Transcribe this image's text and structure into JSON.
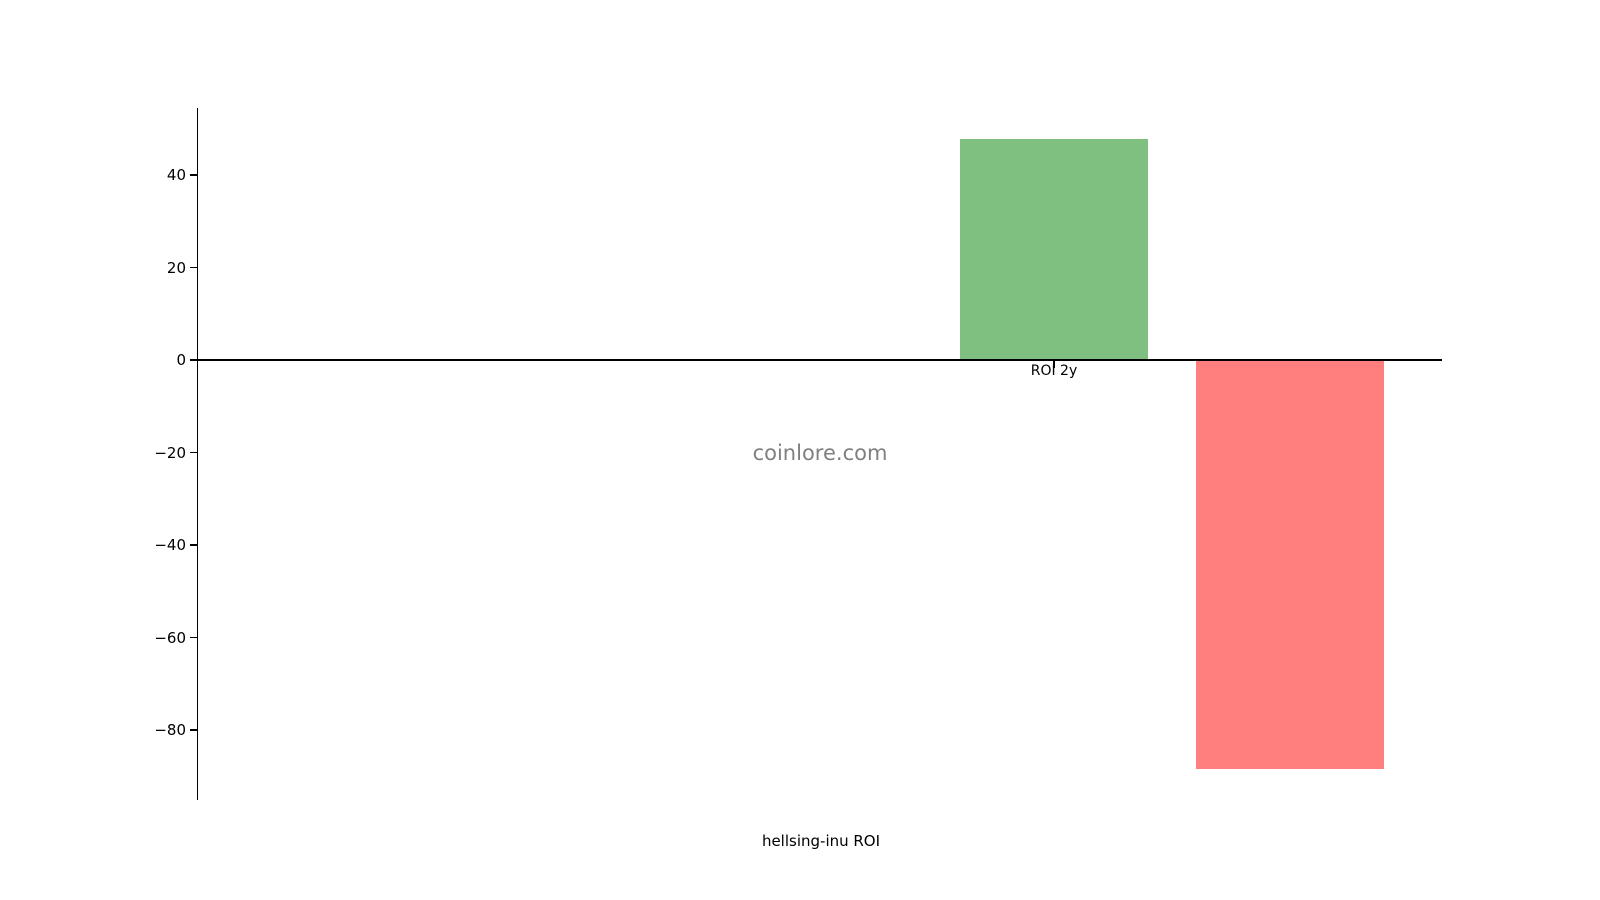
{
  "chart_data": {
    "type": "bar",
    "title": "",
    "xlabel": "hellsing-inu ROI",
    "ylabel": "",
    "watermark": "coinlore.com",
    "categories": [
      "ROI 2y",
      ""
    ],
    "values": [
      47.7,
      -88.4
    ],
    "bar_colors": [
      "#7fbf7f",
      "#ff7f7f"
    ],
    "ytick_values": [
      40,
      20,
      0,
      -20,
      -40,
      -60,
      -80
    ],
    "ytick_labels": [
      "40",
      "20",
      "0",
      "−20",
      "−40",
      "−60",
      "−80"
    ],
    "ylim": [
      -95.1,
      54.5
    ],
    "grid": false,
    "legend": null,
    "axis_color": "#000000",
    "tick_label_color": "#000000",
    "watermark_color": "#808080",
    "background_color": "#ffffff"
  }
}
